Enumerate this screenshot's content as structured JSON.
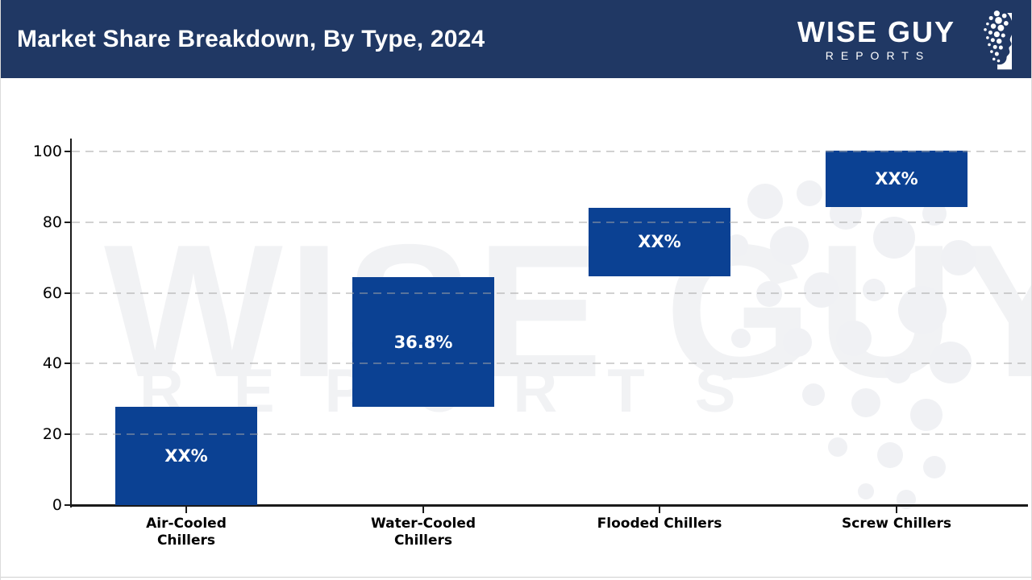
{
  "header": {
    "title": "Market Share Breakdown, By Type, 2024",
    "logo": {
      "name": "WISE GUY",
      "tagline": "REPORTS"
    }
  },
  "watermark": {
    "big_text": "WISE GUY",
    "small_text": "REPORTS"
  },
  "chart_data": {
    "type": "bar",
    "variant": "waterfall-floating-bars",
    "title": "Market Share Breakdown, By Type, 2024",
    "categories": [
      "Air-Cooled Chillers",
      "Water-Cooled Chillers",
      "Flooded Chillers",
      "Screw Chillers"
    ],
    "x_tick_display": [
      "Air-Cooled\nChillers",
      "Water-Cooled\nChillers",
      "Flooded Chillers",
      "Screw Chillers"
    ],
    "series": [
      {
        "name": "Market share (%)",
        "segments": [
          {
            "category": "Air-Cooled Chillers",
            "start": 0,
            "end": 27.7,
            "value_label": "XX%"
          },
          {
            "category": "Water-Cooled Chillers",
            "start": 27.7,
            "end": 64.5,
            "value": 36.8,
            "value_label": "36.8%"
          },
          {
            "category": "Flooded Chillers",
            "start": 64.7,
            "end": 84.1,
            "value_label": "XX%"
          },
          {
            "category": "Screw Chillers",
            "start": 84.2,
            "end": 100.3,
            "value_label": "XX%"
          }
        ]
      }
    ],
    "xlabel": "",
    "ylabel": "",
    "ylim": [
      0,
      100
    ],
    "yticks": [
      0,
      20,
      40,
      60,
      80,
      100
    ],
    "grid": "horizontal-dashed",
    "legend": false,
    "bar_color": "#0b4193",
    "bar_label_color": "#ffffff",
    "axis_color": "#1a1a1a",
    "header_color": "#203864",
    "watermark_color": "#f1f2f4"
  }
}
